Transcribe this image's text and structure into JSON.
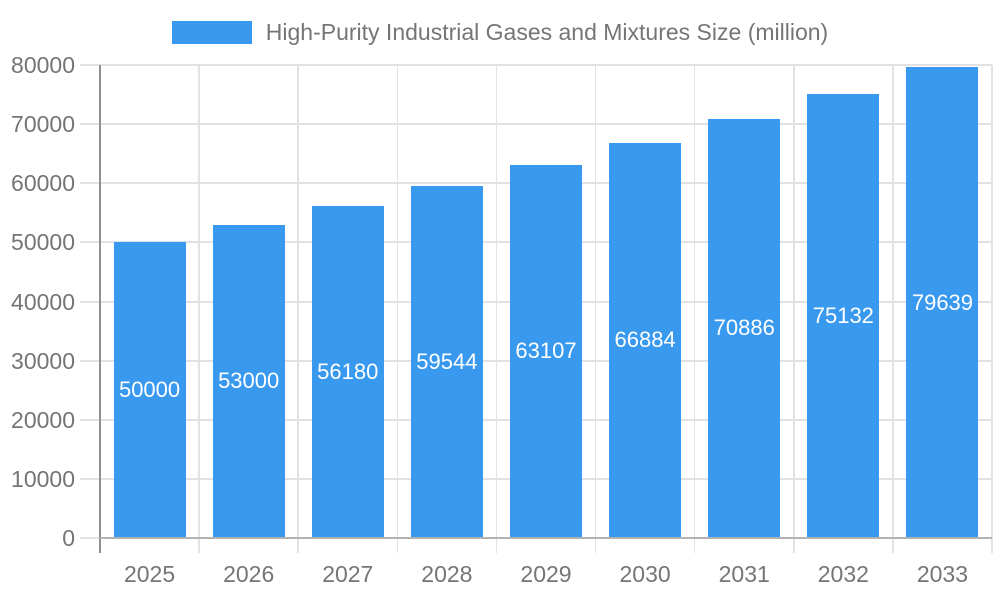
{
  "chart_data": {
    "type": "bar",
    "title": "High-Purity Industrial Gases and Mixtures Size (million)",
    "categories": [
      "2025",
      "2026",
      "2027",
      "2028",
      "2029",
      "2030",
      "2031",
      "2032",
      "2033"
    ],
    "values": [
      50000,
      53000,
      56180,
      59544,
      63107,
      66884,
      70886,
      75132,
      79639
    ],
    "xlabel": "",
    "ylabel": "",
    "ylim": [
      0,
      80000
    ],
    "yticks": [
      0,
      10000,
      20000,
      30000,
      40000,
      50000,
      60000,
      70000,
      80000
    ],
    "grid": true,
    "legend_position": "top",
    "value_label_position": "inside-center"
  },
  "style": {
    "background": "#ffffff",
    "bar_color": "#3899ee",
    "bar_label_color": "#ffffff",
    "axis_text_color": "#757575",
    "grid_color": "#e2e2e2",
    "y_axis_line_color": "#8f8f8f",
    "x_axis_line_color": "#b3b3b3"
  }
}
